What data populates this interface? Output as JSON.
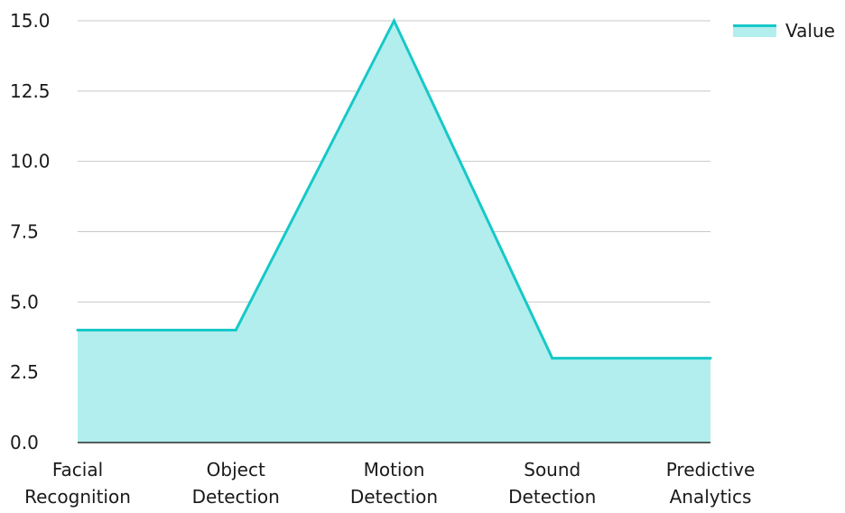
{
  "chart_data": {
    "type": "area",
    "categories": [
      "Facial Recognition",
      "Object Detection",
      "Motion Detection",
      "Sound Detection",
      "Predictive Analytics"
    ],
    "category_lines": [
      [
        "Facial",
        "Recognition"
      ],
      [
        "Object",
        "Detection"
      ],
      [
        "Motion",
        "Detection"
      ],
      [
        "Sound",
        "Detection"
      ],
      [
        "Predictive",
        "Analytics"
      ]
    ],
    "series": [
      {
        "name": "Value",
        "values": [
          4,
          4,
          15,
          3,
          3
        ]
      }
    ],
    "ylim": [
      0,
      15
    ],
    "y_ticks": [
      "0.0",
      "2.5",
      "5.0",
      "7.5",
      "10.0",
      "12.5",
      "15.0"
    ],
    "grid": true,
    "legend_position": "top-right",
    "colors": {
      "line": "#17c8c8",
      "fill": "#b2eeee",
      "grid": "#c8c8c8",
      "axis": "#2a2a2a"
    }
  }
}
